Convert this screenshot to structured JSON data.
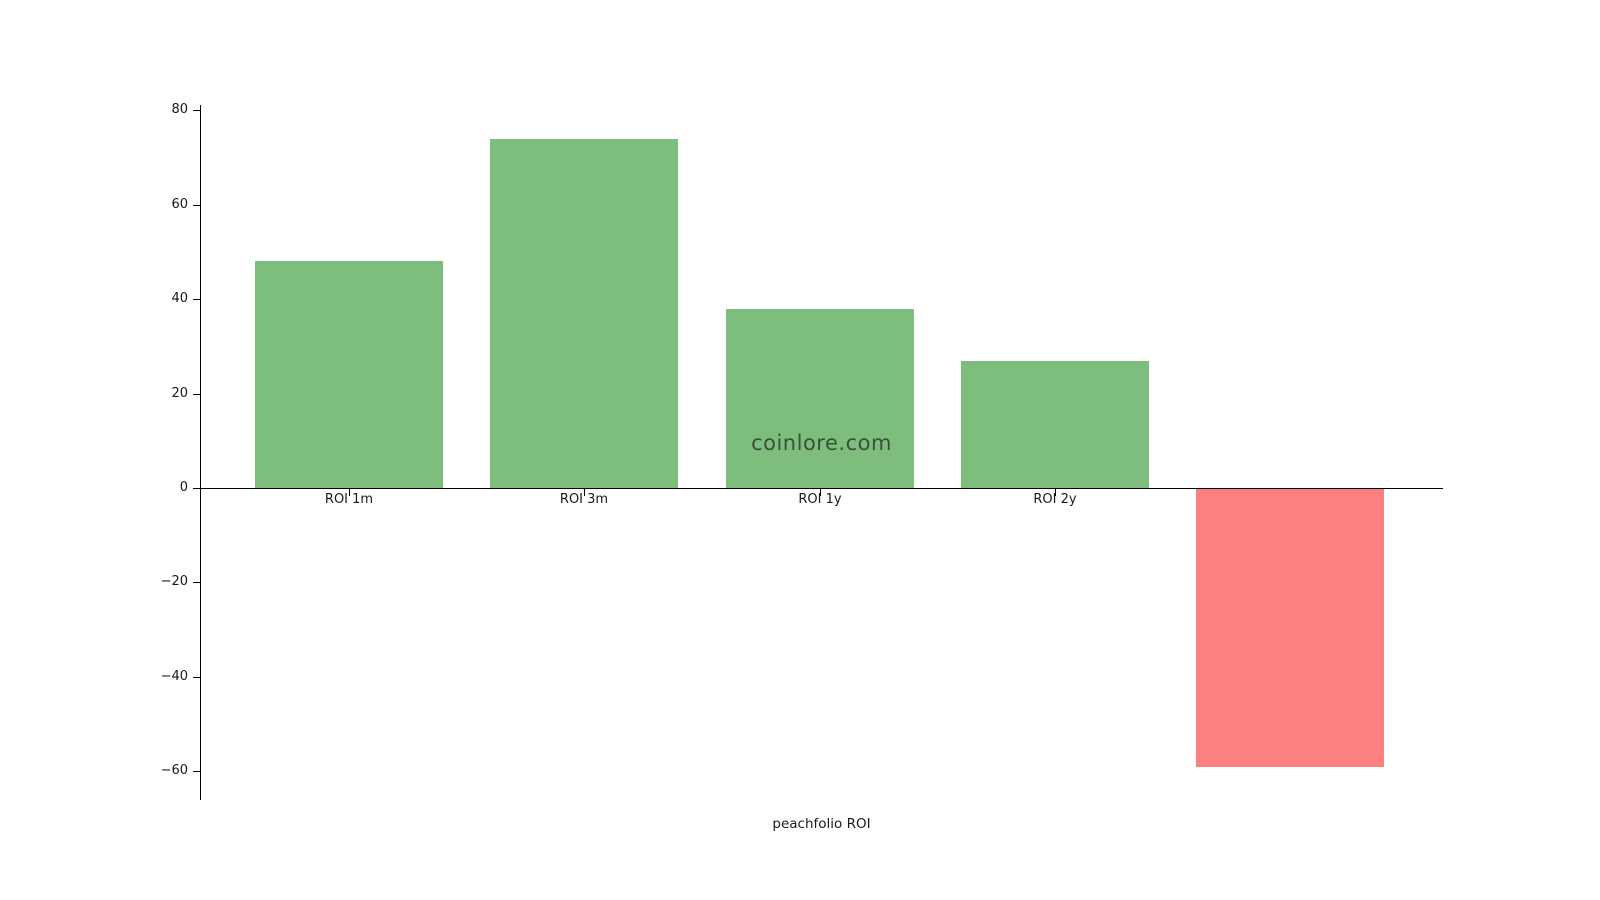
{
  "page": {
    "background": "#ffffff"
  },
  "watermark": {
    "text": "coinlore.com"
  },
  "chart_data": {
    "type": "bar",
    "title": "peachfolio ROI",
    "categories": [
      "ROI 1m",
      "ROI 3m",
      "ROI 1y",
      "ROI 2y",
      ""
    ],
    "values": [
      48,
      74,
      38,
      27,
      -59
    ],
    "positive_color": "#7dbe7c",
    "negative_color": "#fd8080",
    "axis_color": "#000000",
    "tick_text_color": "#1a1a1a",
    "yticks": [
      80,
      60,
      40,
      20,
      0,
      -20,
      -40,
      -60
    ],
    "ylim": [
      -66,
      81
    ],
    "xlabel": "",
    "ylabel": "",
    "grid": false,
    "legend_position": "none"
  }
}
